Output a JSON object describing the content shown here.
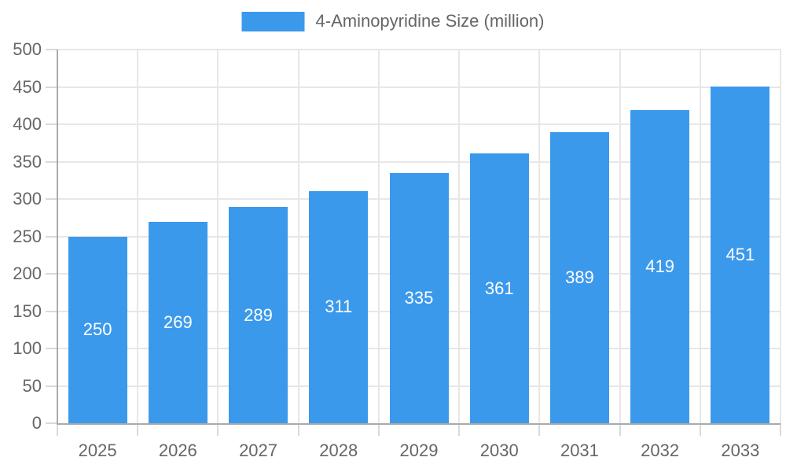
{
  "chart_data": {
    "type": "bar",
    "title": "4-Aminopyridine Size (million)",
    "legend": [
      "4-Aminopyridine Size (million)"
    ],
    "legend_position": "top-center",
    "categories": [
      "2025",
      "2026",
      "2027",
      "2028",
      "2029",
      "2030",
      "2031",
      "2032",
      "2033"
    ],
    "values": [
      250,
      269,
      289,
      311,
      335,
      361,
      389,
      419,
      451
    ],
    "xlabel": "",
    "ylabel": "",
    "ylim": [
      0,
      500
    ],
    "ytick_step": 50,
    "yticks": [
      0,
      50,
      100,
      150,
      200,
      250,
      300,
      350,
      400,
      450,
      500
    ],
    "grid": true,
    "value_labels_inside_bars": true,
    "colors": {
      "bar": "#3b99ec",
      "grid": "#e7e7e7",
      "axis": "#aaaaaa",
      "tick": "#d9d9d9",
      "text": "#666666",
      "bar_label": "#ffffff"
    }
  }
}
